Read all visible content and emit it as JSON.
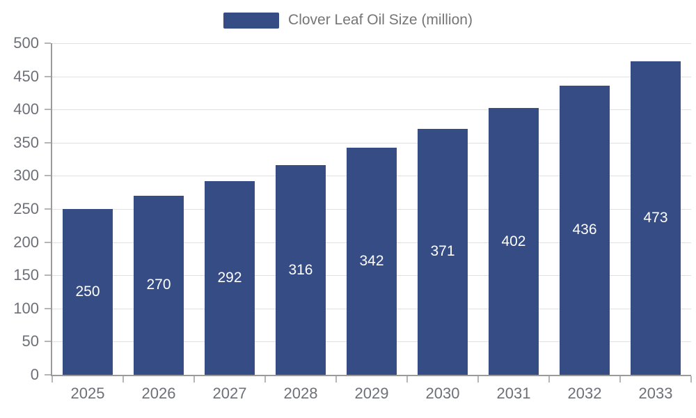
{
  "chart_data": {
    "type": "bar",
    "title": "Clover Leaf Oil Size (million)",
    "categories": [
      "2025",
      "2026",
      "2027",
      "2028",
      "2029",
      "2030",
      "2031",
      "2032",
      "2033"
    ],
    "values": [
      250,
      270,
      292,
      316,
      342,
      371,
      402,
      436,
      473
    ],
    "xlabel": "",
    "ylabel": "",
    "ylim": [
      0,
      500
    ],
    "yticks": [
      0,
      50,
      100,
      150,
      200,
      250,
      300,
      350,
      400,
      450,
      500
    ],
    "grid": true,
    "legend_position": "top-center",
    "value_labels_position": "inside-center"
  },
  "legend": {
    "label": "Clover Leaf Oil Size (million)"
  },
  "colors": {
    "bar": "#364C84",
    "value_label": "#ffffff",
    "axis_line": "#9a9a9a",
    "tick": "#b5b5b5",
    "gridline": "#e0e0e0",
    "axis_text": "#6e7079",
    "legend_text": "#757575",
    "background": "#ffffff"
  }
}
